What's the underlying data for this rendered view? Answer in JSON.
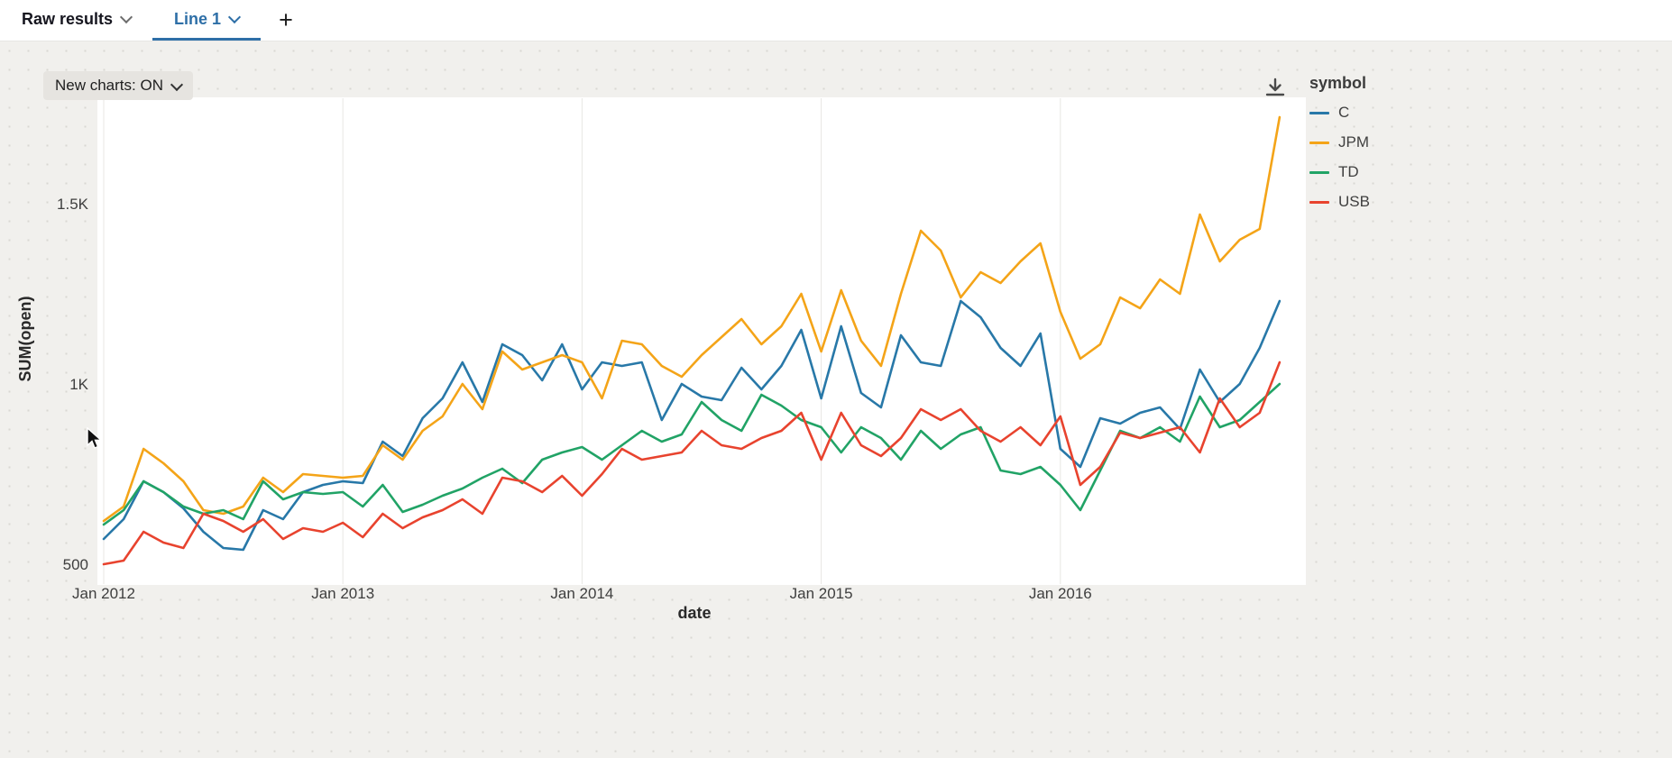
{
  "tab_bar": {
    "tabs": [
      {
        "label": "Raw results",
        "active": false
      },
      {
        "label": "Line 1",
        "active": true
      }
    ],
    "add_tab_icon": "+"
  },
  "toolbar": {
    "new_charts_label": "New charts: ON"
  },
  "legend": {
    "title": "symbol",
    "entries": [
      {
        "label": "C",
        "color": "#2878a8"
      },
      {
        "label": "JPM",
        "color": "#f4a418"
      },
      {
        "label": "TD",
        "color": "#21a366"
      },
      {
        "label": "USB",
        "color": "#e8432e"
      }
    ]
  },
  "chart_data": {
    "type": "line",
    "title": "",
    "xlabel": "date",
    "ylabel": "SUM(open)",
    "x_interval": "month",
    "legend_position": "right",
    "grid": "vertical-year-lines",
    "ylim": [
      450,
      1800
    ],
    "x": [
      "2012-01",
      "2012-02",
      "2012-03",
      "2012-04",
      "2012-05",
      "2012-06",
      "2012-07",
      "2012-08",
      "2012-09",
      "2012-10",
      "2012-11",
      "2012-12",
      "2013-01",
      "2013-02",
      "2013-03",
      "2013-04",
      "2013-05",
      "2013-06",
      "2013-07",
      "2013-08",
      "2013-09",
      "2013-10",
      "2013-11",
      "2013-12",
      "2014-01",
      "2014-02",
      "2014-03",
      "2014-04",
      "2014-05",
      "2014-06",
      "2014-07",
      "2014-08",
      "2014-09",
      "2014-10",
      "2014-11",
      "2014-12",
      "2015-01",
      "2015-02",
      "2015-03",
      "2015-04",
      "2015-05",
      "2015-06",
      "2015-07",
      "2015-08",
      "2015-09",
      "2015-10",
      "2015-11",
      "2015-12",
      "2016-01",
      "2016-02",
      "2016-03",
      "2016-04",
      "2016-05",
      "2016-06",
      "2016-07",
      "2016-08",
      "2016-09",
      "2016-10",
      "2016-11",
      "2016-12"
    ],
    "x_ticks": [
      {
        "index": 0,
        "label": "Jan 2012"
      },
      {
        "index": 12,
        "label": "Jan 2013"
      },
      {
        "index": 24,
        "label": "Jan 2014"
      },
      {
        "index": 36,
        "label": "Jan 2015"
      },
      {
        "index": 48,
        "label": "Jan 2016"
      }
    ],
    "y_ticks": [
      {
        "value": 500,
        "label": "500"
      },
      {
        "value": 1000,
        "label": "1K"
      },
      {
        "value": 1500,
        "label": "1.5K"
      }
    ],
    "series": [
      {
        "name": "C",
        "color": "#2878a8",
        "values": [
          570,
          625,
          730,
          700,
          655,
          590,
          545,
          540,
          650,
          625,
          700,
          720,
          730,
          725,
          840,
          800,
          905,
          960,
          1060,
          950,
          1110,
          1080,
          1010,
          1110,
          985,
          1060,
          1050,
          1060,
          900,
          1000,
          965,
          955,
          1045,
          985,
          1050,
          1150,
          960,
          1160,
          975,
          935,
          1135,
          1060,
          1050,
          1230,
          1185,
          1100,
          1050,
          1140,
          820,
          770,
          905,
          890,
          920,
          935,
          875,
          1040,
          950,
          1000,
          1100,
          1230
        ]
      },
      {
        "name": "JPM",
        "color": "#f4a418",
        "values": [
          620,
          660,
          820,
          780,
          730,
          650,
          640,
          660,
          740,
          700,
          750,
          745,
          740,
          745,
          830,
          790,
          870,
          910,
          1000,
          930,
          1090,
          1040,
          1060,
          1080,
          1060,
          960,
          1120,
          1110,
          1050,
          1020,
          1080,
          1130,
          1180,
          1110,
          1160,
          1250,
          1090,
          1260,
          1120,
          1050,
          1250,
          1425,
          1370,
          1240,
          1310,
          1280,
          1340,
          1390,
          1200,
          1070,
          1110,
          1240,
          1210,
          1290,
          1250,
          1470,
          1340,
          1400,
          1430,
          1740
        ]
      },
      {
        "name": "TD",
        "color": "#21a366",
        "values": [
          610,
          650,
          730,
          700,
          660,
          640,
          650,
          625,
          730,
          680,
          700,
          695,
          700,
          660,
          720,
          645,
          665,
          690,
          710,
          740,
          765,
          725,
          790,
          810,
          825,
          790,
          830,
          870,
          840,
          860,
          950,
          900,
          870,
          970,
          940,
          900,
          880,
          810,
          880,
          850,
          790,
          870,
          820,
          860,
          880,
          760,
          750,
          770,
          720,
          650,
          760,
          870,
          850,
          880,
          840,
          965,
          880,
          900,
          950,
          1000
        ]
      },
      {
        "name": "USB",
        "color": "#e8432e",
        "values": [
          500,
          510,
          590,
          560,
          545,
          640,
          620,
          590,
          625,
          570,
          600,
          590,
          615,
          575,
          640,
          600,
          630,
          650,
          680,
          640,
          740,
          730,
          700,
          745,
          690,
          750,
          820,
          790,
          800,
          810,
          870,
          830,
          820,
          850,
          870,
          920,
          790,
          920,
          830,
          800,
          850,
          930,
          900,
          930,
          870,
          840,
          880,
          830,
          910,
          720,
          770,
          865,
          850,
          865,
          880,
          810,
          960,
          880,
          920,
          1060
        ]
      }
    ]
  }
}
